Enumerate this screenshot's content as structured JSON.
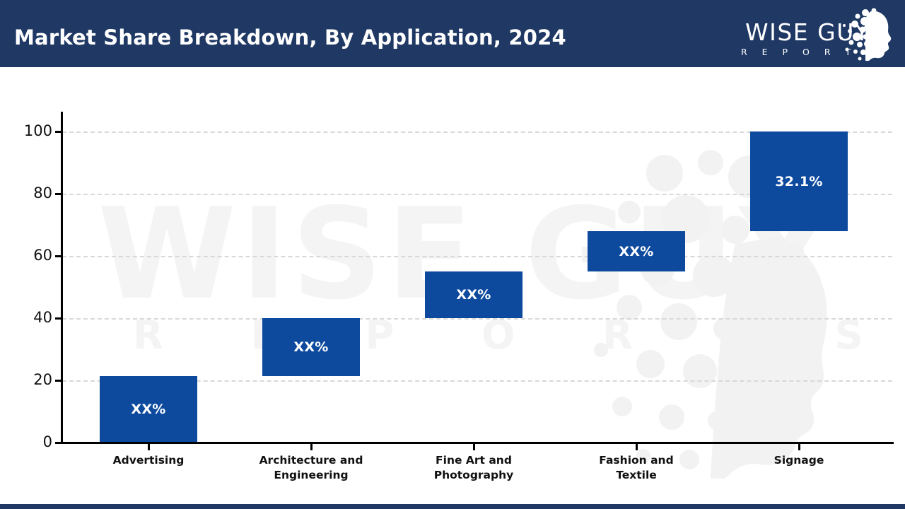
{
  "header": {
    "title": "Market Share Breakdown, By Application, 2024",
    "logo": {
      "line1": "WISE GUY",
      "line2": "R E P O R T S"
    }
  },
  "watermark": {
    "line1": "WISE GUY",
    "line2": "R E P O R T S"
  },
  "chart_data": {
    "type": "bar",
    "variant": "waterfall",
    "title": "Market Share Breakdown, By Application, 2024",
    "categories": [
      "Advertising",
      "Architecture and Engineering",
      "Fine Art and Photography",
      "Fashion and Textile",
      "Signage"
    ],
    "category_label_lines": [
      [
        "Advertising"
      ],
      [
        "Architecture and",
        "Engineering"
      ],
      [
        "Fine Art and",
        "Photography"
      ],
      [
        "Fashion and",
        "Textile"
      ],
      [
        "Signage"
      ]
    ],
    "series": [
      {
        "name": "Market Share (%)",
        "segments": [
          {
            "category": "Advertising",
            "start": 0,
            "end": 21.3,
            "value": 21.3,
            "label": "XX%"
          },
          {
            "category": "Architecture and Engineering",
            "start": 21.3,
            "end": 40,
            "value": 18.7,
            "label": "XX%"
          },
          {
            "category": "Fine Art and Photography",
            "start": 40,
            "end": 55,
            "value": 15,
            "label": "XX%"
          },
          {
            "category": "Fashion and Textile",
            "start": 55,
            "end": 67.9,
            "value": 12.9,
            "label": "XX%"
          },
          {
            "category": "Signage",
            "start": 67.9,
            "end": 100,
            "value": 32.1,
            "label": "32.1%"
          }
        ]
      }
    ],
    "xlabel": "",
    "ylabel": "",
    "ylim": [
      0,
      100
    ],
    "yticks": [
      0,
      20,
      40,
      60,
      80,
      100
    ],
    "grid": "horizontal-dashed",
    "legend": "none",
    "colors": {
      "bar": "#0d4a9e",
      "header_bg": "#1f3864",
      "grid": "#d8d8d8",
      "axis": "#000000",
      "bar_label": "#ffffff",
      "watermark": "#f4f4f4"
    }
  }
}
